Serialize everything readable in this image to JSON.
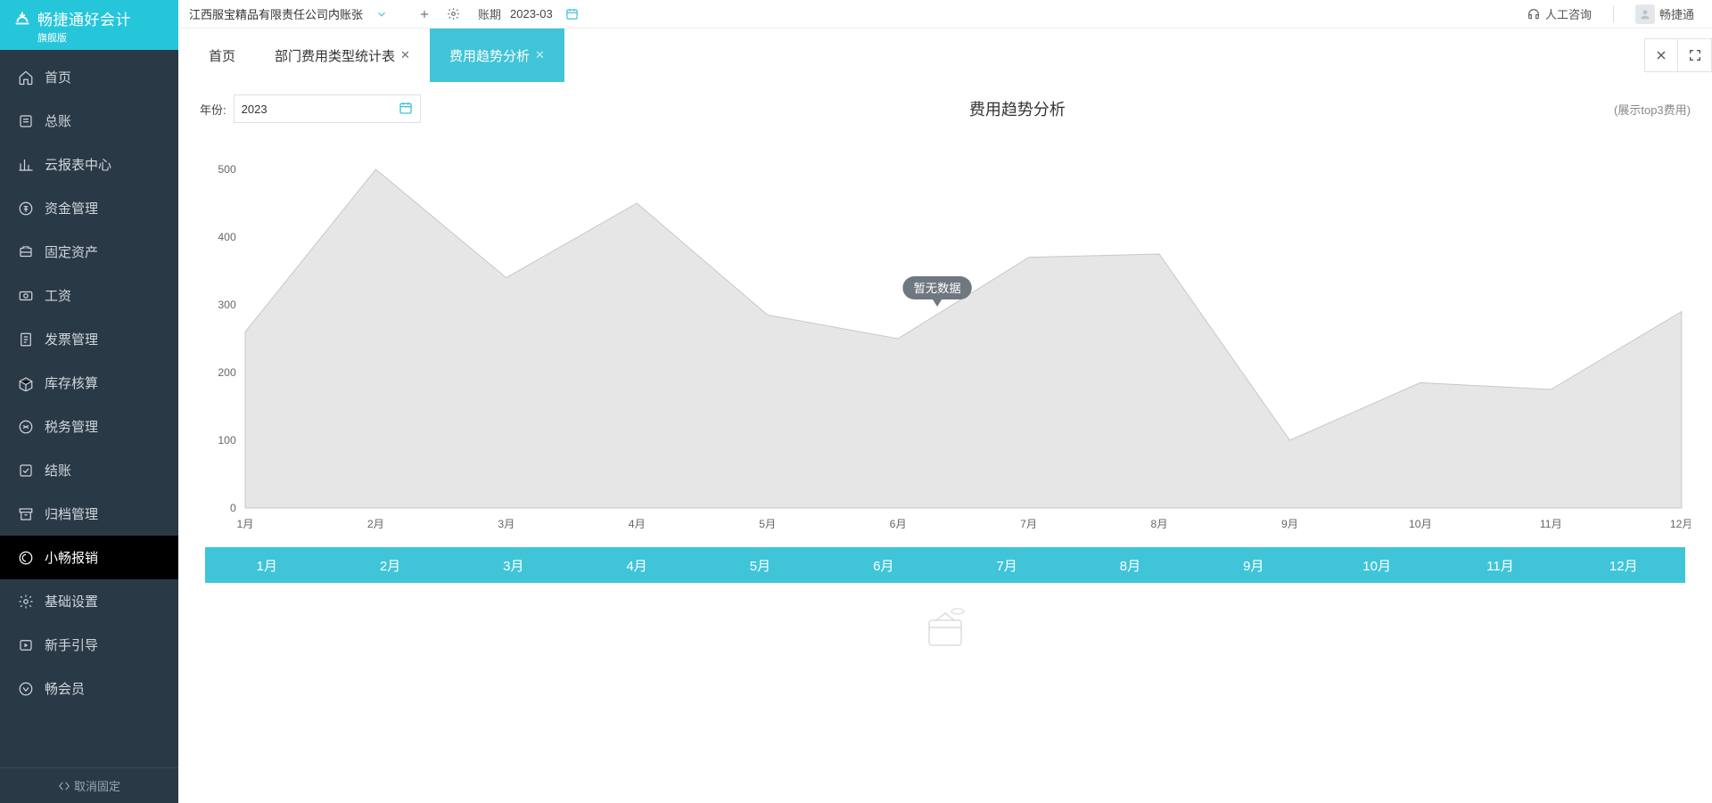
{
  "logo": {
    "title": "畅捷通好会计",
    "subtitle": "旗舰版"
  },
  "sidebar": {
    "items": [
      {
        "label": "首页",
        "icon": "home"
      },
      {
        "label": "总账",
        "icon": "ledger"
      },
      {
        "label": "云报表中心",
        "icon": "report"
      },
      {
        "label": "资金管理",
        "icon": "funds"
      },
      {
        "label": "固定资产",
        "icon": "asset"
      },
      {
        "label": "工资",
        "icon": "salary"
      },
      {
        "label": "发票管理",
        "icon": "invoice"
      },
      {
        "label": "库存核算",
        "icon": "inventory"
      },
      {
        "label": "税务管理",
        "icon": "tax"
      },
      {
        "label": "结账",
        "icon": "close"
      },
      {
        "label": "归档管理",
        "icon": "archive"
      },
      {
        "label": "小畅报销",
        "icon": "expense"
      },
      {
        "label": "基础设置",
        "icon": "settings"
      },
      {
        "label": "新手引导",
        "icon": "guide"
      },
      {
        "label": "畅会员",
        "icon": "vip"
      }
    ],
    "active_index": 11,
    "footer": "取消固定"
  },
  "topbar": {
    "company": "江西服宝精品有限责任公司内账张",
    "period_label": "账期",
    "period_value": "2023-03",
    "support": "人工咨询",
    "user": "畅捷通"
  },
  "tabs": [
    {
      "label": "首页",
      "closable": false
    },
    {
      "label": "部门费用类型统计表",
      "closable": true
    },
    {
      "label": "费用趋势分析",
      "closable": true
    }
  ],
  "active_tab": 2,
  "controls": {
    "year_label": "年份:",
    "year_value": "2023",
    "chart_title": "费用趋势分析",
    "top3_note": "(展示top3费用)",
    "tooltip": "暂无数据"
  },
  "chart": {
    "type": "area",
    "ylim": [
      0,
      500
    ],
    "ytick_step": 100,
    "y_ticks": [
      0,
      100,
      200,
      300,
      400,
      500
    ],
    "x_labels": [
      "1月",
      "2月",
      "3月",
      "4月",
      "5月",
      "6月",
      "7月",
      "8月",
      "9月",
      "10月",
      "11月",
      "12月"
    ],
    "values": [
      260,
      500,
      340,
      450,
      285,
      250,
      370,
      375,
      100,
      185,
      175,
      290
    ],
    "area_fill": "#e6e6e6",
    "area_stroke": "#c8c8c8",
    "background_color": "#ffffff",
    "axis_text_color": "#666666",
    "title_fontsize": 18,
    "label_fontsize": 12
  },
  "month_bar": {
    "labels": [
      "1月",
      "2月",
      "3月",
      "4月",
      "5月",
      "6月",
      "7月",
      "8月",
      "9月",
      "10月",
      "11月",
      "12月"
    ],
    "background": "#40c4d8",
    "text_color": "#ffffff"
  },
  "colors": {
    "accent": "#40c4d8",
    "sidebar_bg": "#2a3946",
    "sidebar_active_bg": "#000000"
  }
}
